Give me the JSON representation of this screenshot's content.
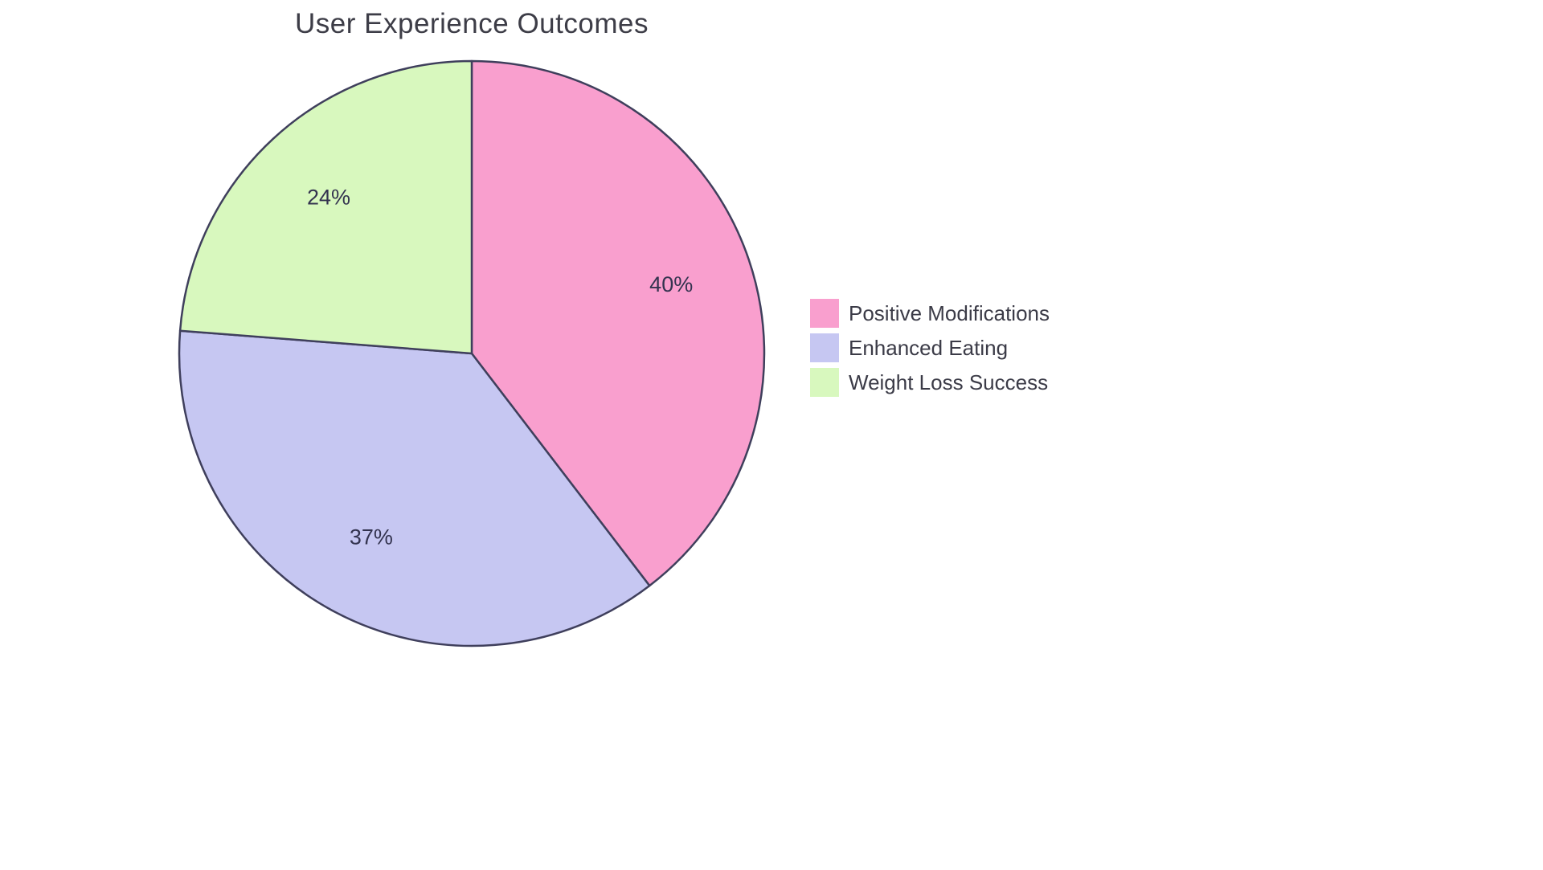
{
  "title": "User Experience Outcomes",
  "chart_data": {
    "type": "pie",
    "title": "User Experience Outcomes",
    "legend_position": "right",
    "stroke_color": "#3f3f5c",
    "label_color": "#33334f",
    "background_color": "#ffffff",
    "slices": [
      {
        "label": "Positive Modifications",
        "value": 40,
        "display": "40%",
        "color": "#f99fce"
      },
      {
        "label": "Enhanced Eating",
        "value": 37,
        "display": "37%",
        "color": "#c6c7f2"
      },
      {
        "label": "Weight Loss Success",
        "value": 24,
        "display": "24%",
        "color": "#d8f8be"
      }
    ]
  }
}
